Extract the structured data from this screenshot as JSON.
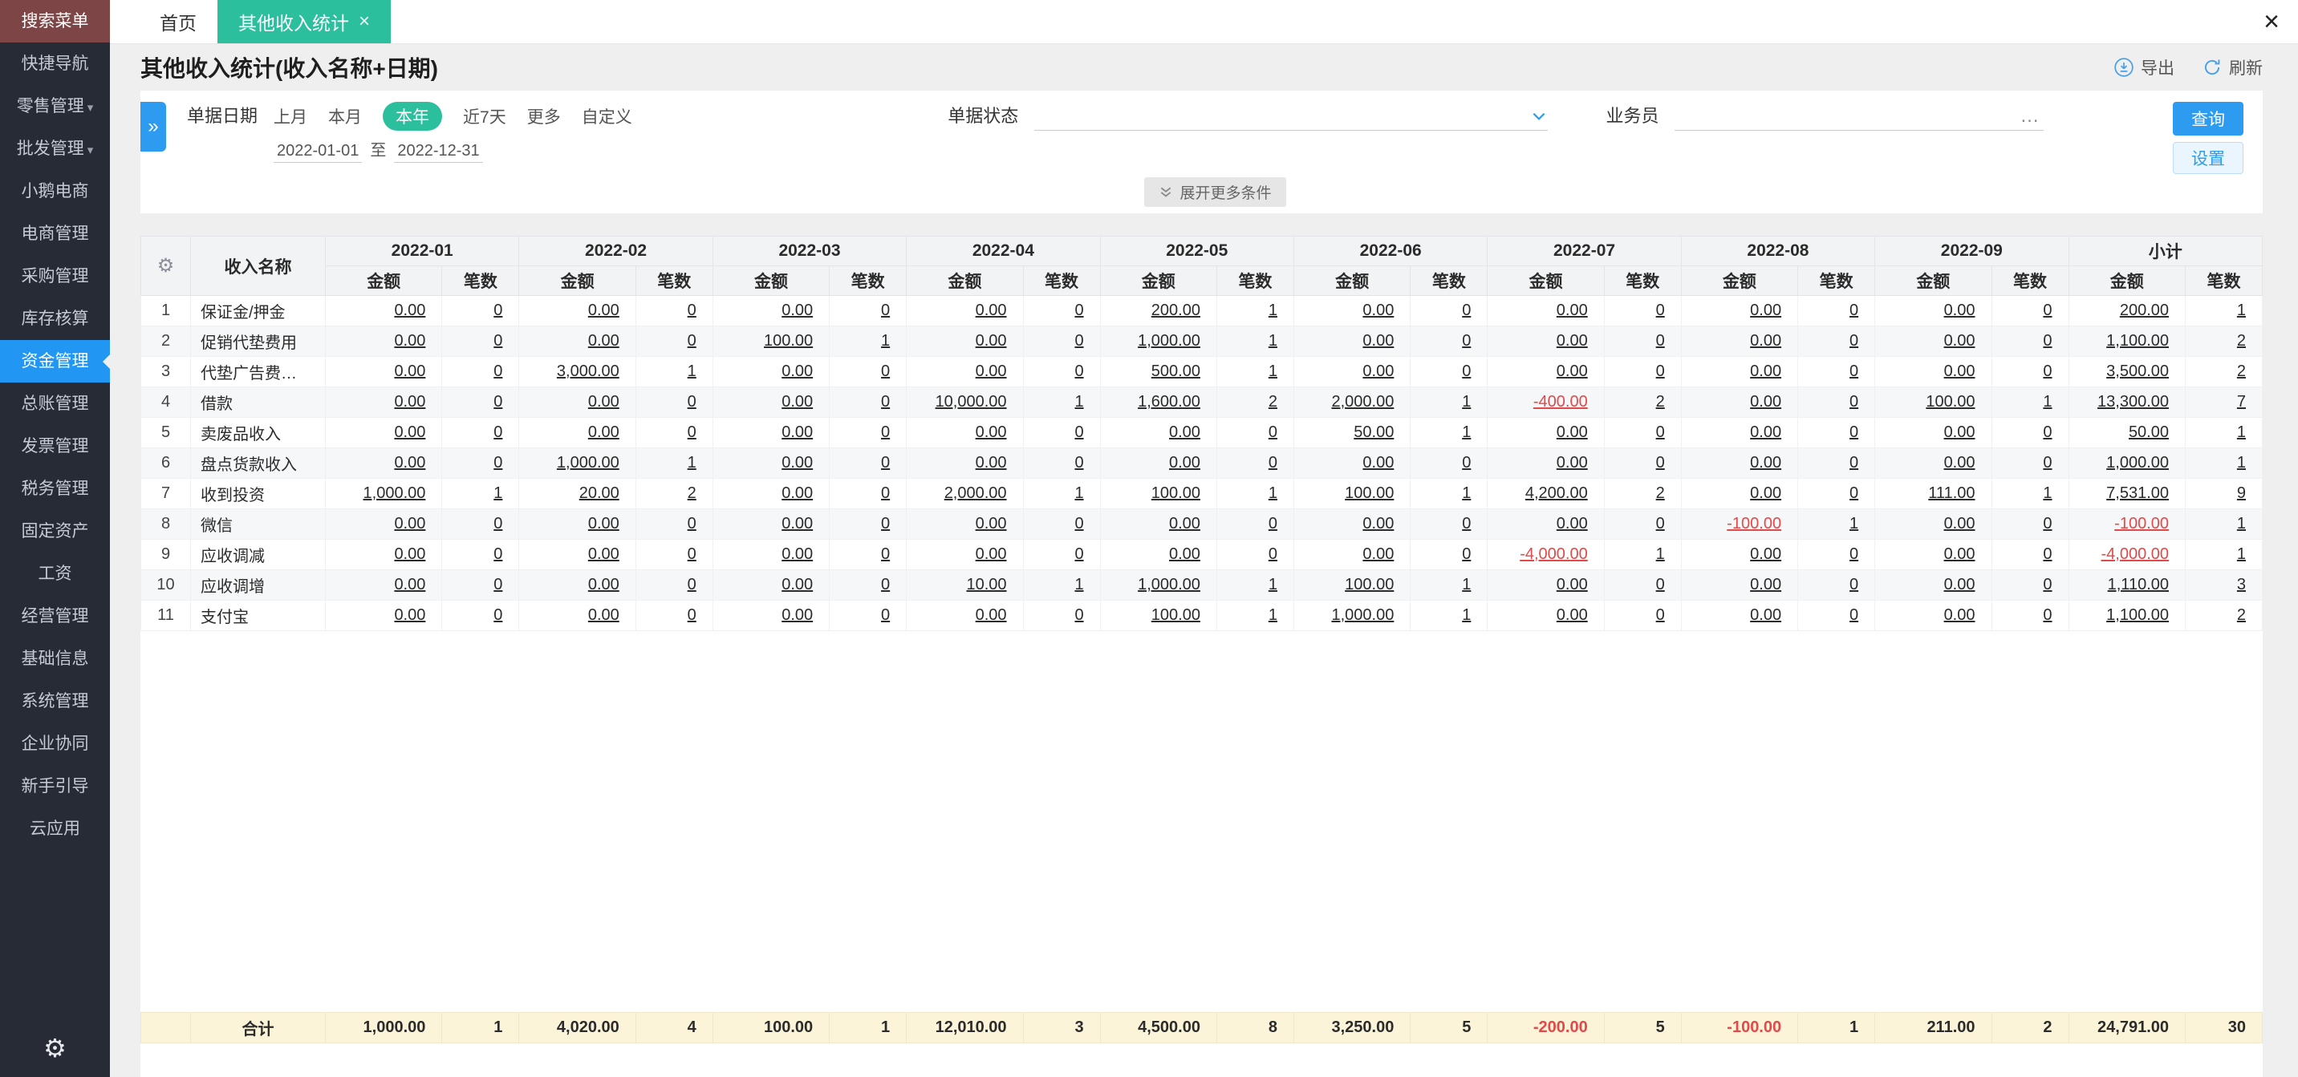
{
  "icons": {
    "gear": "⚙",
    "caret_down": "▾",
    "collapse_right": "»",
    "close": "×"
  },
  "sidebar": {
    "search_item": "搜索菜单",
    "items": [
      {
        "label": "快捷导航"
      },
      {
        "label": "零售管理",
        "caret": true
      },
      {
        "label": "批发管理",
        "caret": true
      },
      {
        "label": "小鹅电商"
      },
      {
        "label": "电商管理"
      },
      {
        "label": "采购管理"
      },
      {
        "label": "库存核算"
      },
      {
        "label": "资金管理",
        "active": true
      },
      {
        "label": "总账管理"
      },
      {
        "label": "发票管理"
      },
      {
        "label": "税务管理"
      },
      {
        "label": "固定资产"
      },
      {
        "label": "工资"
      },
      {
        "label": "经营管理"
      },
      {
        "label": "基础信息"
      },
      {
        "label": "系统管理"
      },
      {
        "label": "企业协同"
      },
      {
        "label": "新手引导"
      },
      {
        "label": "云应用"
      }
    ]
  },
  "tabbar": {
    "tabs": [
      {
        "label": "首页",
        "active": false,
        "closable": false
      },
      {
        "label": "其他收入统计",
        "active": true,
        "closable": true
      }
    ]
  },
  "page": {
    "title": "其他收入统计(收入名称+日期)",
    "export_label": "导出",
    "refresh_label": "刷新"
  },
  "filters": {
    "date_label": "单据日期",
    "date_options": [
      {
        "label": "上月"
      },
      {
        "label": "本月"
      },
      {
        "label": "本年",
        "selected": true
      },
      {
        "label": "近7天"
      },
      {
        "label": "更多"
      },
      {
        "label": "自定义"
      }
    ],
    "date_start": "2022-01-01",
    "date_separator": "至",
    "date_end": "2022-12-31",
    "status_label": "单据状态",
    "salesman_label": "业务员",
    "salesman_more": "…",
    "query_label": "查询",
    "settings_label": "设置",
    "expand_label": "展开更多条件"
  },
  "table": {
    "name_header": "收入名称",
    "amount_header": "金额",
    "count_header": "笔数",
    "month_headers": [
      "2022-01",
      "2022-02",
      "2022-03",
      "2022-04",
      "2022-05",
      "2022-06",
      "2022-07",
      "2022-08",
      "2022-09",
      "小计"
    ],
    "rows": [
      {
        "index": 1,
        "name": "保证金/押金",
        "cells": [
          "0.00",
          "0",
          "0.00",
          "0",
          "0.00",
          "0",
          "0.00",
          "0",
          "200.00",
          "1",
          "0.00",
          "0",
          "0.00",
          "0",
          "0.00",
          "0",
          "0.00",
          "0",
          "200.00",
          "1"
        ]
      },
      {
        "index": 2,
        "name": "促销代垫费用",
        "cells": [
          "0.00",
          "0",
          "0.00",
          "0",
          "100.00",
          "1",
          "0.00",
          "0",
          "1,000.00",
          "1",
          "0.00",
          "0",
          "0.00",
          "0",
          "0.00",
          "0",
          "0.00",
          "0",
          "1,100.00",
          "2"
        ]
      },
      {
        "index": 3,
        "name": "代垫广告费…",
        "cells": [
          "0.00",
          "0",
          "3,000.00",
          "1",
          "0.00",
          "0",
          "0.00",
          "0",
          "500.00",
          "1",
          "0.00",
          "0",
          "0.00",
          "0",
          "0.00",
          "0",
          "0.00",
          "0",
          "3,500.00",
          "2"
        ]
      },
      {
        "index": 4,
        "name": "借款",
        "cells": [
          "0.00",
          "0",
          "0.00",
          "0",
          "0.00",
          "0",
          "10,000.00",
          "1",
          "1,600.00",
          "2",
          "2,000.00",
          "1",
          "-400.00",
          "2",
          "0.00",
          "0",
          "100.00",
          "1",
          "13,300.00",
          "7"
        ]
      },
      {
        "index": 5,
        "name": "卖废品收入",
        "cells": [
          "0.00",
          "0",
          "0.00",
          "0",
          "0.00",
          "0",
          "0.00",
          "0",
          "0.00",
          "0",
          "50.00",
          "1",
          "0.00",
          "0",
          "0.00",
          "0",
          "0.00",
          "0",
          "50.00",
          "1"
        ]
      },
      {
        "index": 6,
        "name": "盘点货款收入",
        "cells": [
          "0.00",
          "0",
          "1,000.00",
          "1",
          "0.00",
          "0",
          "0.00",
          "0",
          "0.00",
          "0",
          "0.00",
          "0",
          "0.00",
          "0",
          "0.00",
          "0",
          "0.00",
          "0",
          "1,000.00",
          "1"
        ]
      },
      {
        "index": 7,
        "name": "收到投资",
        "cells": [
          "1,000.00",
          "1",
          "20.00",
          "2",
          "0.00",
          "0",
          "2,000.00",
          "1",
          "100.00",
          "1",
          "100.00",
          "1",
          "4,200.00",
          "2",
          "0.00",
          "0",
          "111.00",
          "1",
          "7,531.00",
          "9"
        ]
      },
      {
        "index": 8,
        "name": "微信",
        "cells": [
          "0.00",
          "0",
          "0.00",
          "0",
          "0.00",
          "0",
          "0.00",
          "0",
          "0.00",
          "0",
          "0.00",
          "0",
          "0.00",
          "0",
          "-100.00",
          "1",
          "0.00",
          "0",
          "-100.00",
          "1"
        ]
      },
      {
        "index": 9,
        "name": "应收调减",
        "cells": [
          "0.00",
          "0",
          "0.00",
          "0",
          "0.00",
          "0",
          "0.00",
          "0",
          "0.00",
          "0",
          "0.00",
          "0",
          "-4,000.00",
          "1",
          "0.00",
          "0",
          "0.00",
          "0",
          "-4,000.00",
          "1"
        ]
      },
      {
        "index": 10,
        "name": "应收调增",
        "cells": [
          "0.00",
          "0",
          "0.00",
          "0",
          "0.00",
          "0",
          "10.00",
          "1",
          "1,000.00",
          "1",
          "100.00",
          "1",
          "0.00",
          "0",
          "0.00",
          "0",
          "0.00",
          "0",
          "1,110.00",
          "3"
        ]
      },
      {
        "index": 11,
        "name": "支付宝",
        "cells": [
          "0.00",
          "0",
          "0.00",
          "0",
          "0.00",
          "0",
          "0.00",
          "0",
          "100.00",
          "1",
          "1,000.00",
          "1",
          "0.00",
          "0",
          "0.00",
          "0",
          "0.00",
          "0",
          "1,100.00",
          "2"
        ]
      }
    ],
    "total_label": "合计",
    "totals": [
      "1,000.00",
      "1",
      "4,020.00",
      "4",
      "100.00",
      "1",
      "12,010.00",
      "3",
      "4,500.00",
      "8",
      "3,250.00",
      "5",
      "-200.00",
      "5",
      "-100.00",
      "1",
      "211.00",
      "2",
      "24,791.00",
      "30"
    ]
  }
}
